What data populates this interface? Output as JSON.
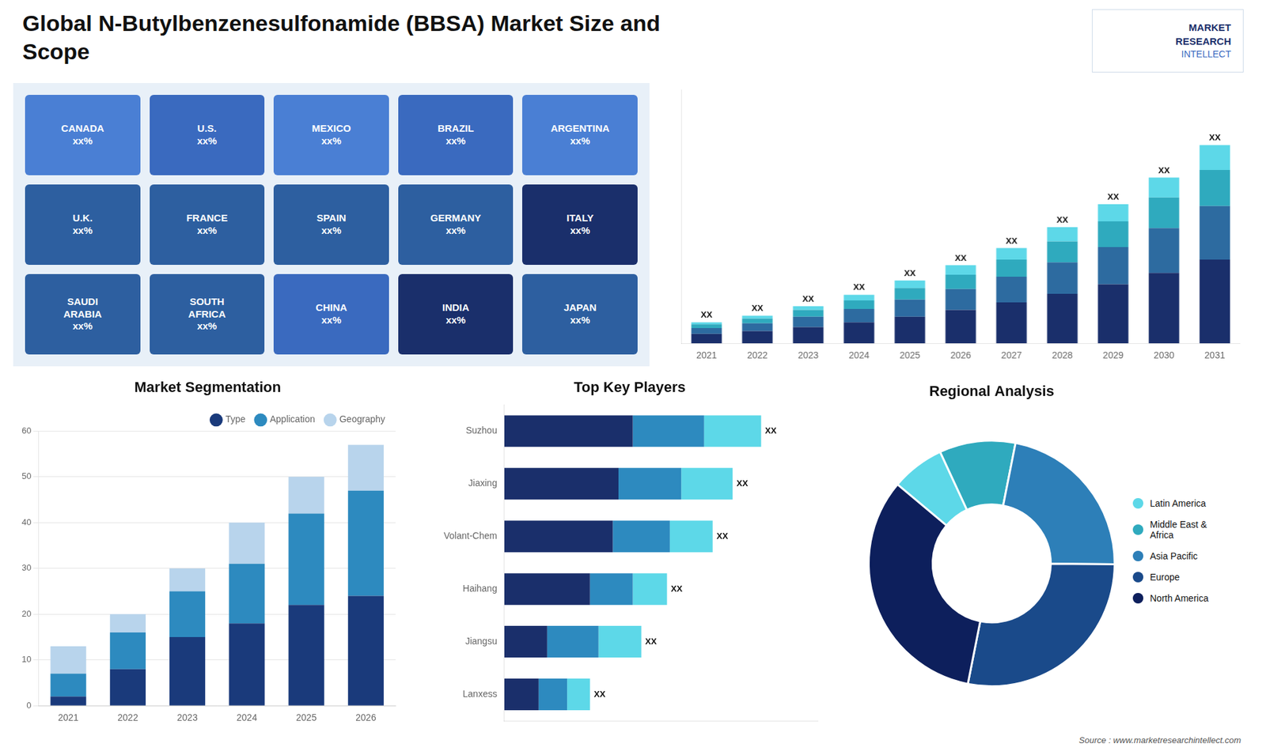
{
  "title": [
    "Global N-Butylbenzenesulfonamide (BBSA) Market Size and",
    "Scope"
  ],
  "annotations": [
    "MARKET",
    "RESEARCH",
    "INTELLECT"
  ],
  "source": "Source : www.marketresearchintellect.com",
  "chart_data": [
    {
      "type": "map",
      "categories": [
        "CANADA",
        "U.S.",
        "MEXICO",
        "BRAZIL",
        "ARGENTINA",
        "U.K.",
        "FRANCE",
        "SPAIN",
        "GERMANY",
        "ITALY",
        "SAUDI\nARABIA",
        "SOUTH\nAFRICA",
        "CHINA",
        "INDIA",
        "JAPAN"
      ],
      "value_labels": [
        "xx%",
        "xx%",
        "xx%",
        "xx%",
        "xx%",
        "xx%",
        "xx%",
        "xx%",
        "xx%",
        "xx%",
        "xx%",
        "xx%",
        "xx%",
        "xx%",
        "xx%"
      ],
      "colors": [
        "#4a7fd4",
        "#3a6abf",
        "#4a7fd4",
        "#3a6abf",
        "#4a7fd4",
        "#2d5fa0",
        "#2d5fa0",
        "#2d5fa0",
        "#2d5fa0",
        "#1a2f6b",
        "#2d5fa0",
        "#2d5fa0",
        "#3a6abf",
        "#1a2f6b",
        "#2d5fa0"
      ]
    },
    {
      "type": "bar",
      "stacked": true,
      "categories": [
        "2021",
        "2022",
        "2023",
        "2024",
        "2025",
        "2026",
        "2027",
        "2028",
        "2029",
        "2030",
        "2031"
      ],
      "series": [
        {
          "color": "#1a2f6b",
          "values": [
            1.0,
            1.3,
            1.7,
            2.2,
            2.8,
            3.5,
            4.3,
            5.2,
            6.2,
            7.4,
            8.8
          ]
        },
        {
          "color": "#2d6ba0",
          "values": [
            0.6,
            0.8,
            1.1,
            1.4,
            1.8,
            2.2,
            2.7,
            3.3,
            3.9,
            4.7,
            5.6
          ]
        },
        {
          "color": "#2faabe",
          "values": [
            0.4,
            0.5,
            0.7,
            0.9,
            1.2,
            1.5,
            1.8,
            2.2,
            2.7,
            3.2,
            3.8
          ]
        },
        {
          "color": "#5dd8e8",
          "values": [
            0.2,
            0.3,
            0.4,
            0.6,
            0.8,
            1.0,
            1.2,
            1.5,
            1.8,
            2.1,
            2.6
          ]
        }
      ],
      "value_labels": [
        "XX",
        "XX",
        "XX",
        "XX",
        "XX",
        "XX",
        "XX",
        "XX",
        "XX",
        "XX",
        "XX"
      ],
      "ylim": [
        0,
        26.624
      ],
      "tick_labels": "x",
      "grid": false
    },
    {
      "type": "bar",
      "stacked": true,
      "title": "Market Segmentation",
      "categories": [
        "2021",
        "2022",
        "2023",
        "2024",
        "2025",
        "2026"
      ],
      "series": [
        {
          "name": "Type",
          "color": "#1a3a7b",
          "values": [
            2,
            8,
            15,
            18,
            22,
            24
          ]
        },
        {
          "name": "Application",
          "color": "#2d8abf",
          "values": [
            5,
            8,
            10,
            13,
            20,
            23
          ]
        },
        {
          "name": "Geography",
          "color": "#b8d4ec",
          "values": [
            6,
            4,
            5,
            9,
            8,
            10
          ]
        }
      ],
      "ylim": [
        0,
        60
      ],
      "yticks": [
        0,
        10,
        20,
        30,
        40,
        50,
        60
      ],
      "grid": true,
      "legend": "upper right"
    },
    {
      "type": "bar",
      "orientation": "horizontal",
      "stacked": true,
      "title": "Top Key Players",
      "categories": [
        "Suzhou",
        "Jiaxing",
        "Volant-Chem",
        "Haihang",
        "Jiangsu",
        "Lanxess"
      ],
      "series": [
        {
          "color": "#1a2f6b",
          "values": [
            4.5,
            4.0,
            3.8,
            3.0,
            1.5,
            1.2
          ]
        },
        {
          "color": "#2d8abf",
          "values": [
            2.5,
            2.2,
            2.0,
            1.5,
            1.8,
            1.0
          ]
        },
        {
          "color": "#5dd8e8",
          "values": [
            2.0,
            1.8,
            1.5,
            1.2,
            1.5,
            0.8
          ]
        }
      ],
      "value_labels": [
        "XX",
        "XX",
        "XX",
        "XX",
        "XX",
        "XX"
      ],
      "xlim": [
        0,
        10.98
      ],
      "tick_labels": "y",
      "grid": false
    },
    {
      "type": "doughnut",
      "title": "Regional Analysis",
      "categories": [
        "Latin America",
        "Middle East &\nAfrica",
        "Asia Pacific",
        "Europe",
        "North America"
      ],
      "values": [
        7,
        10,
        22,
        28,
        33
      ],
      "colors": [
        "#5dd8e8",
        "#2faabe",
        "#2d7fb8",
        "#1a4a8a",
        "#0d1f5c"
      ],
      "legend": "right"
    }
  ]
}
